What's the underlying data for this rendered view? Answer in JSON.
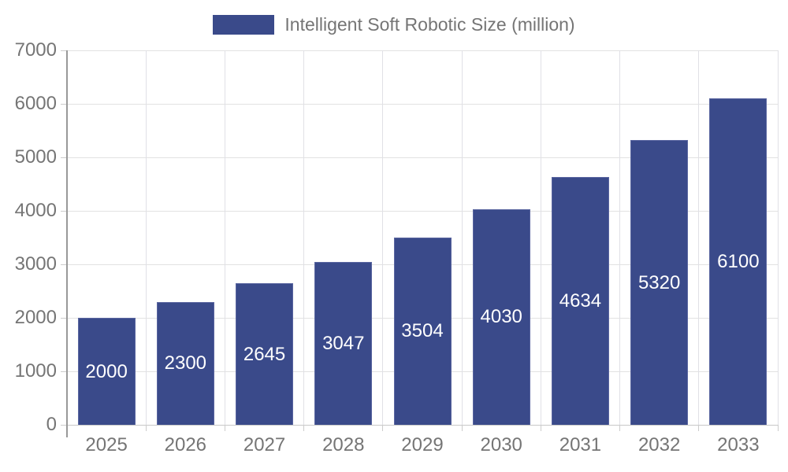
{
  "legend": {
    "label": "Intelligent Soft Robotic Size (million)"
  },
  "chart_data": {
    "type": "bar",
    "title": "",
    "series_name": "Intelligent Soft Robotic Size (million)",
    "categories": [
      "2025",
      "2026",
      "2027",
      "2028",
      "2029",
      "2030",
      "2031",
      "2032",
      "2033"
    ],
    "values": [
      2000,
      2300,
      2645,
      3047,
      3504,
      4030,
      4634,
      5320,
      6100
    ],
    "value_labels": [
      "2000",
      "2300",
      "2645",
      "3047",
      "3504",
      "4030",
      "4634",
      "5320",
      "6100"
    ],
    "xlabel": "",
    "ylabel": "",
    "ylim": [
      0,
      7000
    ],
    "yticks": [
      0,
      1000,
      2000,
      3000,
      4000,
      5000,
      6000,
      7000
    ],
    "grid": true,
    "legend_position": "top-center",
    "colors": {
      "bar": "#3A4A8A",
      "bar_border": "#5A66A0",
      "value_label": "#FFFFFF",
      "axis_text": "#757575",
      "legend_text": "#757575",
      "gridline": "#E2E2E2",
      "vertical_gridline": "#E0E0E6",
      "y_axis_line": "#999999",
      "x_axis_line": "#C8C8C8",
      "tick": "#CCCCCC",
      "background": "#FFFFFF"
    }
  }
}
